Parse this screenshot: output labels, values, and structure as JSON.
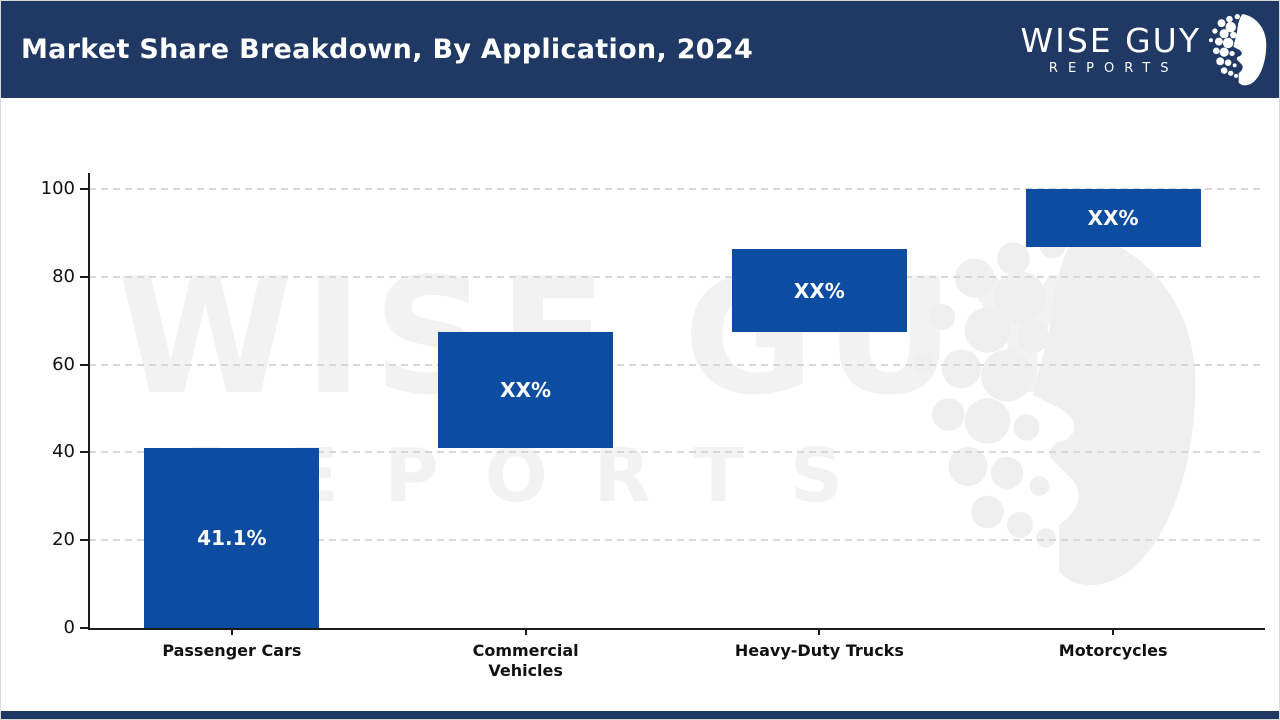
{
  "header": {
    "title": "Market Share Breakdown, By Application, 2024",
    "logo": {
      "name": "WISE GUY",
      "subname": "REPORTS"
    }
  },
  "watermark": {
    "line1": "WISE GUY",
    "line2": "REPORTS"
  },
  "chart_data": {
    "type": "bar",
    "subtype": "waterfall",
    "title": "Market Share Breakdown, By Application, 2024",
    "xlabel": "",
    "ylabel": "",
    "ylim": [
      0,
      100
    ],
    "yticks": [
      0,
      20,
      40,
      60,
      80,
      100
    ],
    "grid": "dashed-horizontal",
    "legend": "none",
    "categories": [
      "Passenger Cars",
      "Commercial\nVehicles",
      "Heavy-Duty Trucks",
      "Motorcycles"
    ],
    "segments": [
      {
        "category": "Passenger Cars",
        "start": 0,
        "end": 41.1,
        "label": "41.1%"
      },
      {
        "category": "Commercial\nVehicles",
        "start": 41.1,
        "end": 67.4,
        "label": "XX%"
      },
      {
        "category": "Heavy-Duty Trucks",
        "start": 67.4,
        "end": 86.3,
        "label": "XX%"
      },
      {
        "category": "Motorcycles",
        "start": 86.8,
        "end": 100.1,
        "label": "XX%"
      }
    ],
    "colors": {
      "bar": "#0C4DA2",
      "bar_label": "#FFFFFF",
      "axis": "#1C1C1C",
      "grid": "#D8D8D8"
    }
  },
  "colors": {
    "header_bg": "#1F3864",
    "footer_bg": "#1F3864",
    "page_bg": "#FFFFFF",
    "watermark": "#F2F2F2",
    "border": "#D9D9D9"
  }
}
